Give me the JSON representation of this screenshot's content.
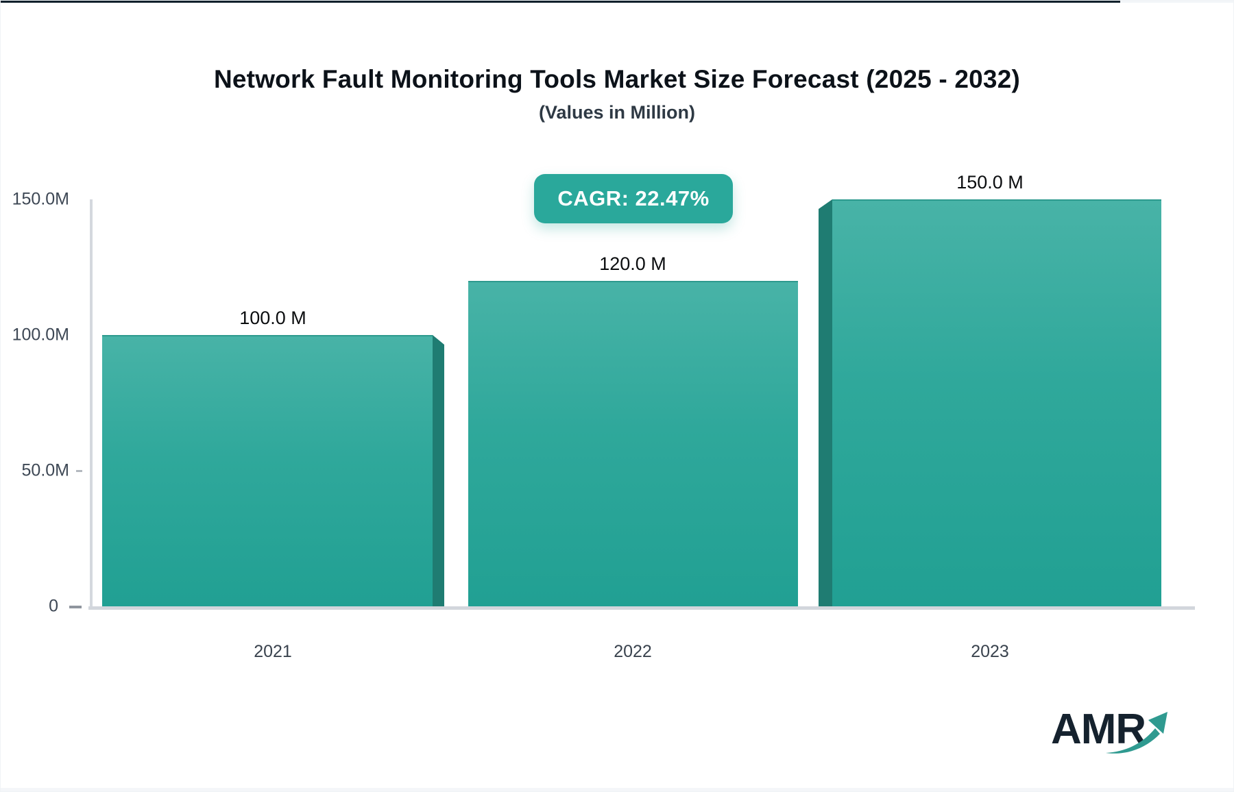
{
  "header": {
    "title": "Network Fault Monitoring Tools Market Size Forecast (2025 - 2032)",
    "subtitle": "(Values in Million)"
  },
  "badge": {
    "text": "CAGR: 22.47%"
  },
  "logo": {
    "text": "AMR"
  },
  "colors": {
    "badge_bg": "#2aa89b",
    "bar_face_top": "#48b3a7",
    "bar_face_bottom": "#21a093",
    "bar_side": "#1f7c72",
    "axis_line": "#d4d8de",
    "title_text": "#0c1219",
    "axis_text": "#3e4855",
    "logo_navy": "#15222e",
    "logo_arrow_teal": "#2f9a90"
  },
  "chart_data": {
    "type": "bar",
    "title": "Network Fault Monitoring Tools Market Size Forecast (2025 - 2032)",
    "subtitle": "(Values in Million)",
    "unit": "Million",
    "cagr_percent": 22.47,
    "categories": [
      "2021",
      "2022",
      "2023"
    ],
    "values": [
      100.0,
      120.0,
      150.0
    ],
    "bar_labels": [
      "100.0 M",
      "120.0 M",
      "150.0 M"
    ],
    "ylim": [
      0,
      150
    ],
    "y_ticks": [
      {
        "label": "150.0M",
        "value": 150
      },
      {
        "label": "100.0M",
        "value": 100
      },
      {
        "label": "50.0M",
        "value": 50
      },
      {
        "label": "0",
        "value": 0
      }
    ],
    "grid": false,
    "legend": false,
    "bar_color": "#2fa89b"
  }
}
